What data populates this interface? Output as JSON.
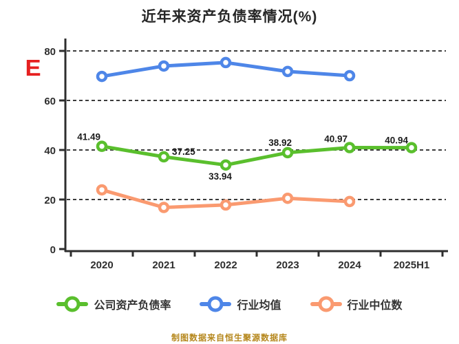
{
  "title": "近年来资产负债率情况(%)",
  "y_axis_badge": "E",
  "footer": "制图数据来自恒生聚源数据库",
  "colors": {
    "company": "#5abf2d",
    "industry_mean": "#4e86e8",
    "industry_median": "#fa9a70",
    "footer_text": "#b5871c",
    "badge_red": "#e62020",
    "axis": "#2e2e2e"
  },
  "chart_data": {
    "type": "line",
    "title": "近年来资产负债率情况(%)",
    "categories": [
      "2020",
      "2021",
      "2022",
      "2023",
      "2024",
      "2025H1"
    ],
    "yticks": [
      0,
      20,
      40,
      60,
      80
    ],
    "ylim": [
      0,
      80
    ],
    "grid": "horizontal-dashed",
    "legend_position": "bottom",
    "series": [
      {
        "name": "公司资产负债率",
        "color": "#5abf2d",
        "values": [
          41.49,
          37.25,
          33.94,
          38.92,
          40.97,
          40.94
        ],
        "point_labels": [
          "41.49",
          "37.25",
          "33.94",
          "38.92",
          "40.97",
          "40.94"
        ]
      },
      {
        "name": "行业均值",
        "color": "#4e86e8",
        "values": [
          69.7,
          73.9,
          75.3,
          71.7,
          70.0
        ],
        "point_labels": []
      },
      {
        "name": "行业中位数",
        "color": "#fa9a70",
        "values": [
          23.9,
          16.8,
          17.8,
          20.5,
          19.2
        ],
        "point_labels": []
      }
    ]
  }
}
